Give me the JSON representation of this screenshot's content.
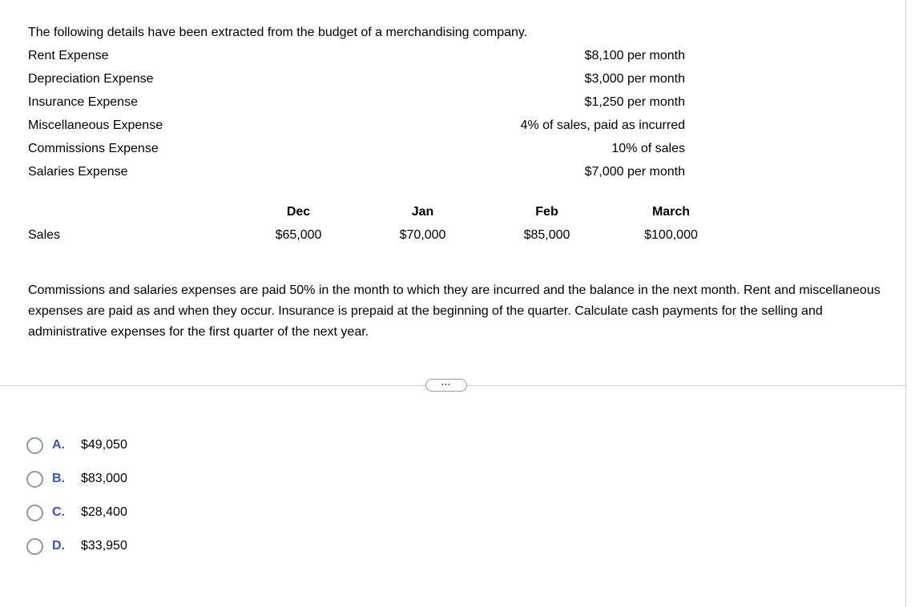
{
  "page": {
    "intro": "The following details have been extracted from the budget of a merchandising company."
  },
  "expenses": {
    "items": [
      {
        "label": "Rent Expense",
        "value": "$8,100 per month"
      },
      {
        "label": "Depreciation Expense",
        "value": "$3,000 per month"
      },
      {
        "label": "Insurance Expense",
        "value": "$1,250 per month"
      },
      {
        "label": "Miscellaneous Expense",
        "value": "4% of sales, paid as incurred"
      },
      {
        "label": "Commissions Expense",
        "value": "10% of sales"
      },
      {
        "label": "Salaries Expense",
        "value": "$7,000 per month"
      }
    ]
  },
  "sales_table": {
    "columns": [
      "Dec",
      "Jan",
      "Feb",
      "March"
    ],
    "row_label": "Sales",
    "values": [
      "$65,000",
      "$70,000",
      "$85,000",
      "$100,000"
    ]
  },
  "instructions": "Commissions and salaries expenses are paid 50% in the month to which they are incurred and the balance in the next month. Rent and miscellaneous expenses are paid as and when they occur. Insurance is prepaid at the beginning of the quarter. Calculate cash payments for the selling and administrative expenses for the first quarter of the next year.",
  "divider": {
    "ellipsis_label": "..."
  },
  "options": [
    {
      "letter": "A.",
      "value": "$49,050"
    },
    {
      "letter": "B.",
      "value": "$83,000"
    },
    {
      "letter": "C.",
      "value": "$28,400"
    },
    {
      "letter": "D.",
      "value": "$33,950"
    }
  ],
  "colors": {
    "accent_blue": "#3a53c5",
    "radio_border": "#8e96aa",
    "divider_gray": "#c9c9c9"
  }
}
